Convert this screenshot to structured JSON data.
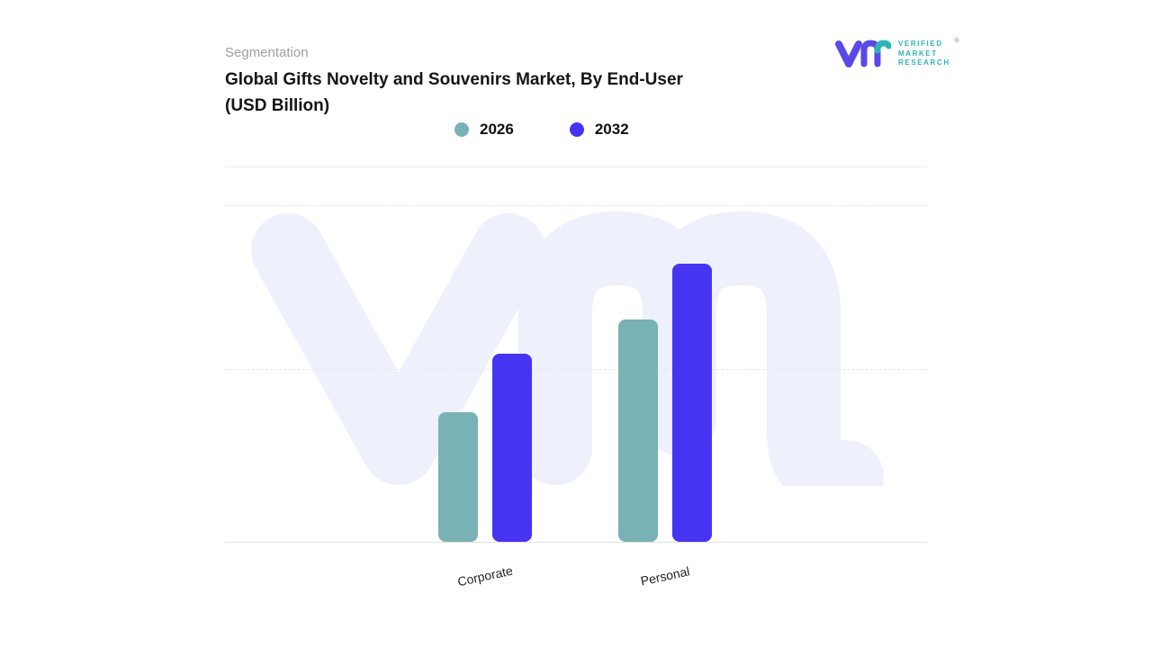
{
  "brand": {
    "logo_lines": [
      "VERIFIED",
      "MARKET",
      "RESEARCH"
    ],
    "registered": "®",
    "accent_teal": "#2cb5b5",
    "accent_purple": "#5a48e8"
  },
  "header": {
    "eyebrow": "Segmentation",
    "title_line1": "Global Gifts Novelty and Souvenirs Market, By End-User",
    "title_line2": "(USD Billion)"
  },
  "chart_data": {
    "type": "bar",
    "title": "Global Gifts Novelty and Souvenirs Market, By End-User (USD Billion)",
    "categories": [
      "Corporate",
      "Personal"
    ],
    "series": [
      {
        "name": "2026",
        "color": "#79b2b4",
        "values": [
          4.6,
          7.9
        ]
      },
      {
        "name": "2032",
        "color": "#4734f2",
        "values": [
          6.7,
          9.9
        ]
      }
    ],
    "xlabel": "",
    "ylabel": "",
    "ylim": [
      0,
      12
    ],
    "grid": "horizontal-dashed",
    "legend_position": "top-center",
    "watermark": "vmr-logo-glyph",
    "colors": {
      "series_2026": "#79b2b4",
      "series_2032": "#4734f2",
      "watermark": "#eef1fb"
    }
  }
}
